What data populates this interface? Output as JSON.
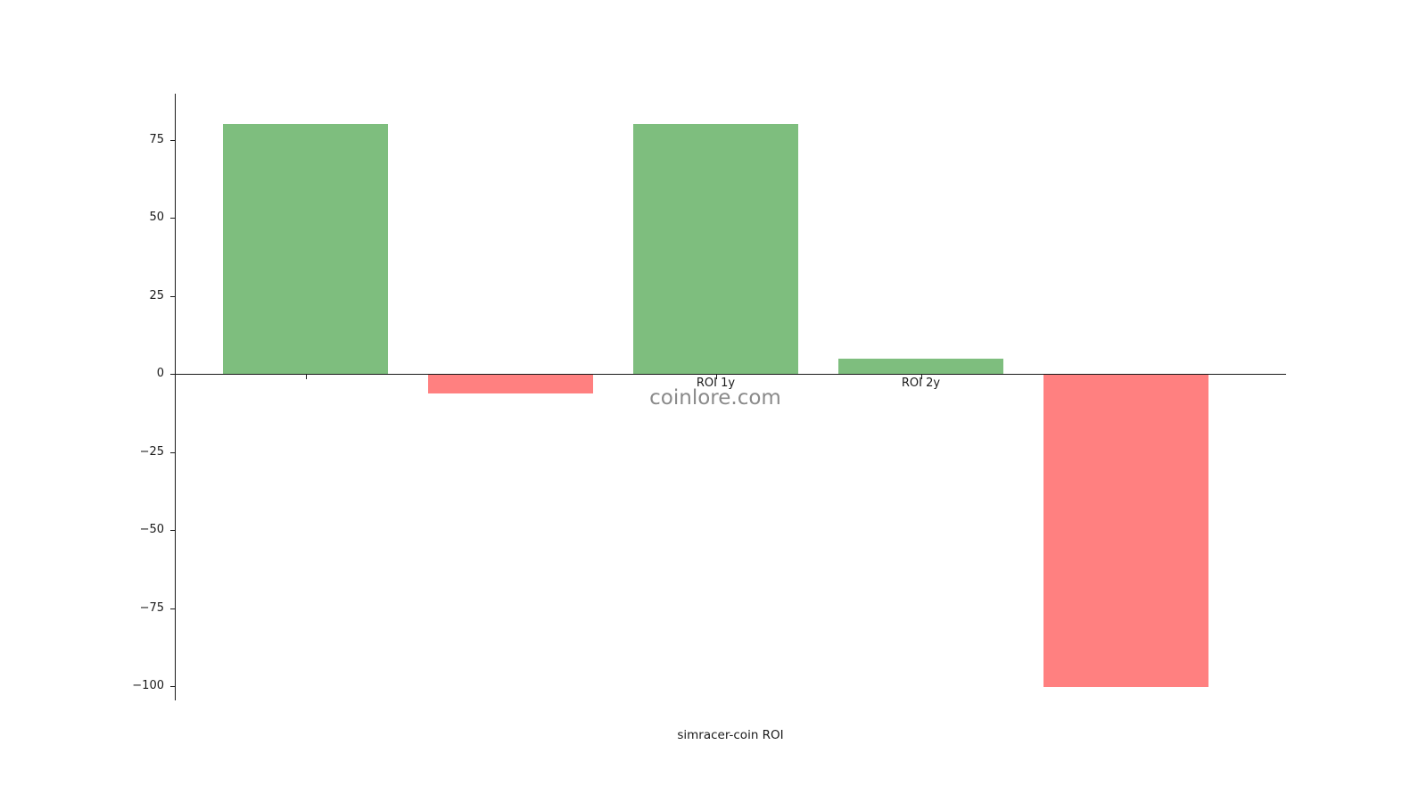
{
  "chart_data": {
    "type": "bar",
    "title": "",
    "xlabel": "simracer-coin ROI",
    "ylabel": "",
    "categories": [
      "",
      "",
      "ROI 1y",
      "ROI 2y",
      ""
    ],
    "values": [
      80,
      -6,
      80,
      5,
      -100
    ],
    "bar_sign_colors": {
      "positive": "#7ebe7e",
      "negative": "#ff8080"
    },
    "y_ticks": [
      75,
      50,
      25,
      0,
      -25,
      -50,
      -75,
      -100
    ],
    "ylim": [
      -105,
      90
    ],
    "grid": false,
    "legend": null,
    "watermark": "coinlore.com",
    "axis_color": "#1a1a1a"
  }
}
